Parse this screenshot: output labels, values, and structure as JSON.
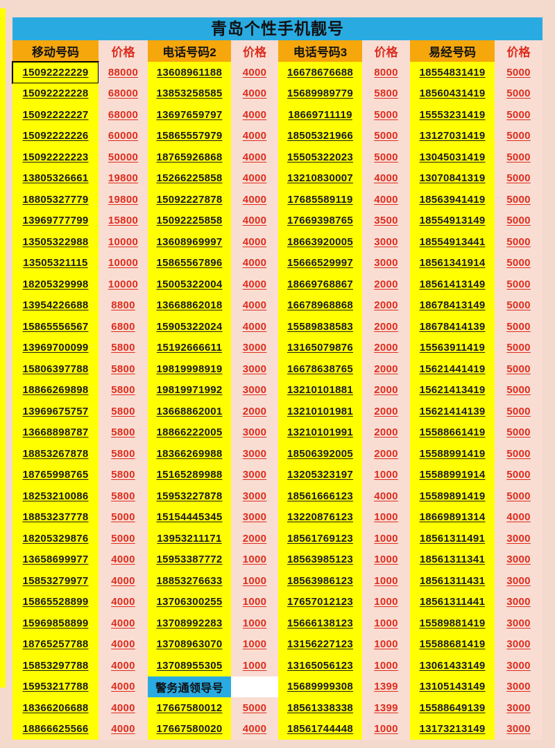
{
  "title": "青岛个性手机靓号",
  "columns": [
    {
      "label": "移动号码",
      "kind": "phone"
    },
    {
      "label": "价格",
      "kind": "price"
    },
    {
      "label": "电话号码2",
      "kind": "phone"
    },
    {
      "label": "价格",
      "kind": "price"
    },
    {
      "label": "电话号码3",
      "kind": "phone"
    },
    {
      "label": "价格",
      "kind": "price"
    },
    {
      "label": "易经号码",
      "kind": "phone"
    },
    {
      "label": "价格",
      "kind": "price"
    }
  ],
  "rows": [
    [
      "15092222229",
      "88000",
      "13608961188",
      "4000",
      "16678676688",
      "8000",
      "18554831419",
      "5000"
    ],
    [
      "15092222228",
      "68000",
      "13853258585",
      "4000",
      "15689989779",
      "5800",
      "18560431419",
      "5000"
    ],
    [
      "15092222227",
      "68000",
      "13697659797",
      "4000",
      "18669711119",
      "5000",
      "15553231419",
      "5000"
    ],
    [
      "15092222226",
      "60000",
      "15865557979",
      "4000",
      "18505321966",
      "5000",
      "13127031419",
      "5000"
    ],
    [
      "15092222223",
      "50000",
      "18765926868",
      "4000",
      "15505322023",
      "5000",
      "13045031419",
      "5000"
    ],
    [
      "13805326661",
      "19800",
      "15266225858",
      "4000",
      "13210830007",
      "4000",
      "13070841319",
      "5000"
    ],
    [
      "18805327779",
      "19800",
      "15092227878",
      "4000",
      "17685589119",
      "4000",
      "18563941419",
      "5000"
    ],
    [
      "13969777799",
      "15800",
      "15092225858",
      "4000",
      "17669398765",
      "3500",
      "18554913149",
      "5000"
    ],
    [
      "13505322988",
      "10000",
      "13608969997",
      "4000",
      "18663920005",
      "3000",
      "18554913441",
      "5000"
    ],
    [
      "13505321115",
      "10000",
      "15865567896",
      "4000",
      "15666529997",
      "3000",
      "18561341914",
      "5000"
    ],
    [
      "18205329998",
      "10000",
      "15005322004",
      "4000",
      "18669768867",
      "2000",
      "18561413149",
      "5000"
    ],
    [
      "13954226688",
      "8800",
      "13668862018",
      "4000",
      "16678968868",
      "2000",
      "18678413149",
      "5000"
    ],
    [
      "15865556567",
      "6800",
      "15905322024",
      "4000",
      "15589838583",
      "2000",
      "18678414139",
      "5000"
    ],
    [
      "13969700099",
      "5800",
      "15192666611",
      "3000",
      "13165079876",
      "2000",
      "15563911419",
      "5000"
    ],
    [
      "15806397788",
      "5800",
      "19819998919",
      "3000",
      "16678638765",
      "2000",
      "15621441419",
      "5000"
    ],
    [
      "18866269898",
      "5800",
      "19819971992",
      "3000",
      "13210101881",
      "2000",
      "15621413419",
      "5000"
    ],
    [
      "13969675757",
      "5800",
      "13668862001",
      "2000",
      "13210101981",
      "2000",
      "15621414139",
      "5000"
    ],
    [
      "13668898787",
      "5800",
      "18866222005",
      "3000",
      "13210101991",
      "2000",
      "15588661419",
      "5000"
    ],
    [
      "18853267878",
      "5800",
      "18366269988",
      "3000",
      "18506392005",
      "2000",
      "15588991419",
      "5000"
    ],
    [
      "18765998765",
      "5800",
      "15165289988",
      "3000",
      "13205323197",
      "1000",
      "15588991914",
      "5000"
    ],
    [
      "18253210086",
      "5800",
      "15953227878",
      "3000",
      "18561666123",
      "4000",
      "15589891419",
      "5000"
    ],
    [
      "18853237778",
      "5000",
      "15154445345",
      "3000",
      "13220876123",
      "1000",
      "18669891314",
      "4000"
    ],
    [
      "18205329876",
      "5000",
      "13953211171",
      "2000",
      "18561769123",
      "1000",
      "18561311491",
      "3000"
    ],
    [
      "13658699977",
      "4000",
      "15953387772",
      "1000",
      "18563985123",
      "1000",
      "18561311341",
      "3000"
    ],
    [
      "15853279977",
      "4000",
      "18853276633",
      "1000",
      "18563986123",
      "1000",
      "18561311431",
      "3000"
    ],
    [
      "15865528899",
      "4000",
      "13706300255",
      "1000",
      "17657012123",
      "1000",
      "18561311441",
      "3000"
    ],
    [
      "15969858899",
      "4000",
      "13708992283",
      "1000",
      "15666138123",
      "1000",
      "15589881419",
      "3000"
    ],
    [
      "18765257788",
      "4000",
      "13708963070",
      "1000",
      "13156227123",
      "1000",
      "15588681419",
      "3000"
    ],
    [
      "15853297788",
      "4000",
      "13708955305",
      "1000",
      "13165056123",
      "1000",
      "13061433149",
      "3000"
    ],
    [
      "15953217788",
      "4000",
      "警务通领导号",
      "",
      "15689999308",
      "1399",
      "13105143149",
      "3000"
    ],
    [
      "18366206688",
      "4000",
      "17667580012",
      "5000",
      "18561338338",
      "1399",
      "15588649139",
      "3000"
    ],
    [
      "18866625566",
      "4000",
      "17667580020",
      "4000",
      "18561744448",
      "1000",
      "13173213149",
      "3000"
    ]
  ],
  "special": {
    "row": 29,
    "col": 2,
    "label": "警务通领导号"
  },
  "selected": {
    "row": 0,
    "col": 0
  },
  "colors": {
    "title_bar_cyan": "#29ABE2",
    "header_orange": "#F6A70B",
    "number_cell_yellow": "#FFFF00",
    "price_cell_pink": "#F9DDD3",
    "page_background_pink": "#F4D9CD",
    "price_text_red": "#DD2C1E",
    "highlight_cyan": "#29ABE2"
  }
}
